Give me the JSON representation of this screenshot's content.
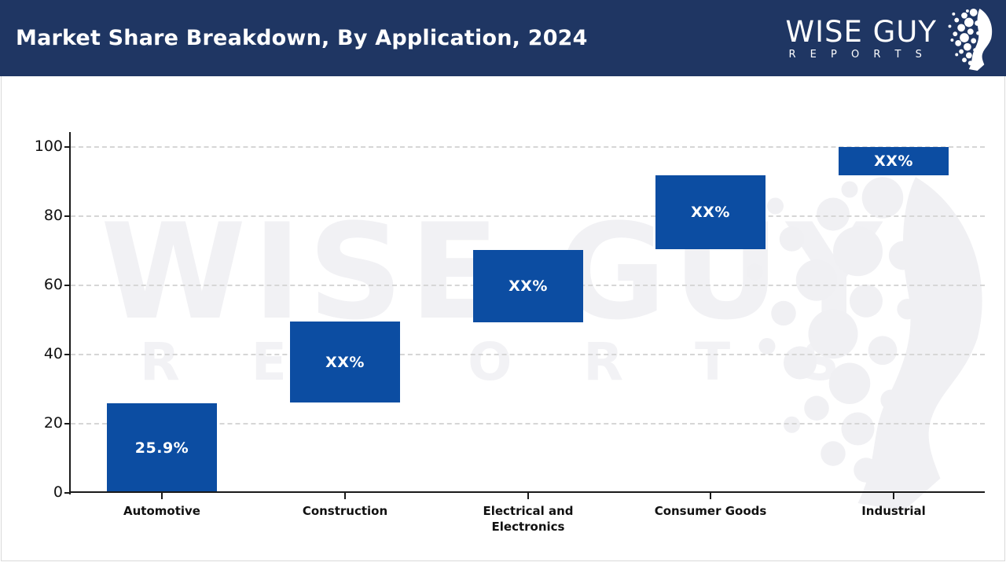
{
  "header": {
    "title": "Market Share Breakdown, By Application, 2024",
    "logo": {
      "name": "WISE GUY",
      "tagline": "R E P O R T S"
    }
  },
  "watermark": {
    "line1": "WISE GUY",
    "line2": "R E P O R T S"
  },
  "colors": {
    "header_bg": "#1f3663",
    "bar": "#0c4da2",
    "axis": "#1a1a1a",
    "grid": "#d6d6d6",
    "watermark": "#f1f1f4",
    "frame_border": "#d9d9d9",
    "value_label": "#ffffff"
  },
  "chart_data": {
    "type": "bar",
    "subtype": "waterfall",
    "title": "Market Share Breakdown, By Application, 2024",
    "categories": [
      "Automotive",
      "Construction",
      "Electrical and Electronics",
      "Consumer Goods",
      "Industrial"
    ],
    "segments": [
      {
        "category": "Automotive",
        "start": 0,
        "end": 25.9,
        "label": "25.9%"
      },
      {
        "category": "Construction",
        "start": 25.9,
        "end": 49.4,
        "label": "XX%"
      },
      {
        "category": "Electrical and Electronics",
        "start": 49.4,
        "end": 70.3,
        "label": "XX%"
      },
      {
        "category": "Consumer Goods",
        "start": 70.3,
        "end": 91.7,
        "label": "XX%"
      },
      {
        "category": "Industrial",
        "start": 91.7,
        "end": 100,
        "label": "XX%"
      }
    ],
    "yticks": [
      0,
      20,
      40,
      60,
      80,
      100
    ],
    "ylim": [
      0,
      100
    ],
    "xlabel": "",
    "ylabel": "",
    "grid": "horizontal-dashed",
    "legend": "none",
    "bar_color": "#0c4da2"
  }
}
